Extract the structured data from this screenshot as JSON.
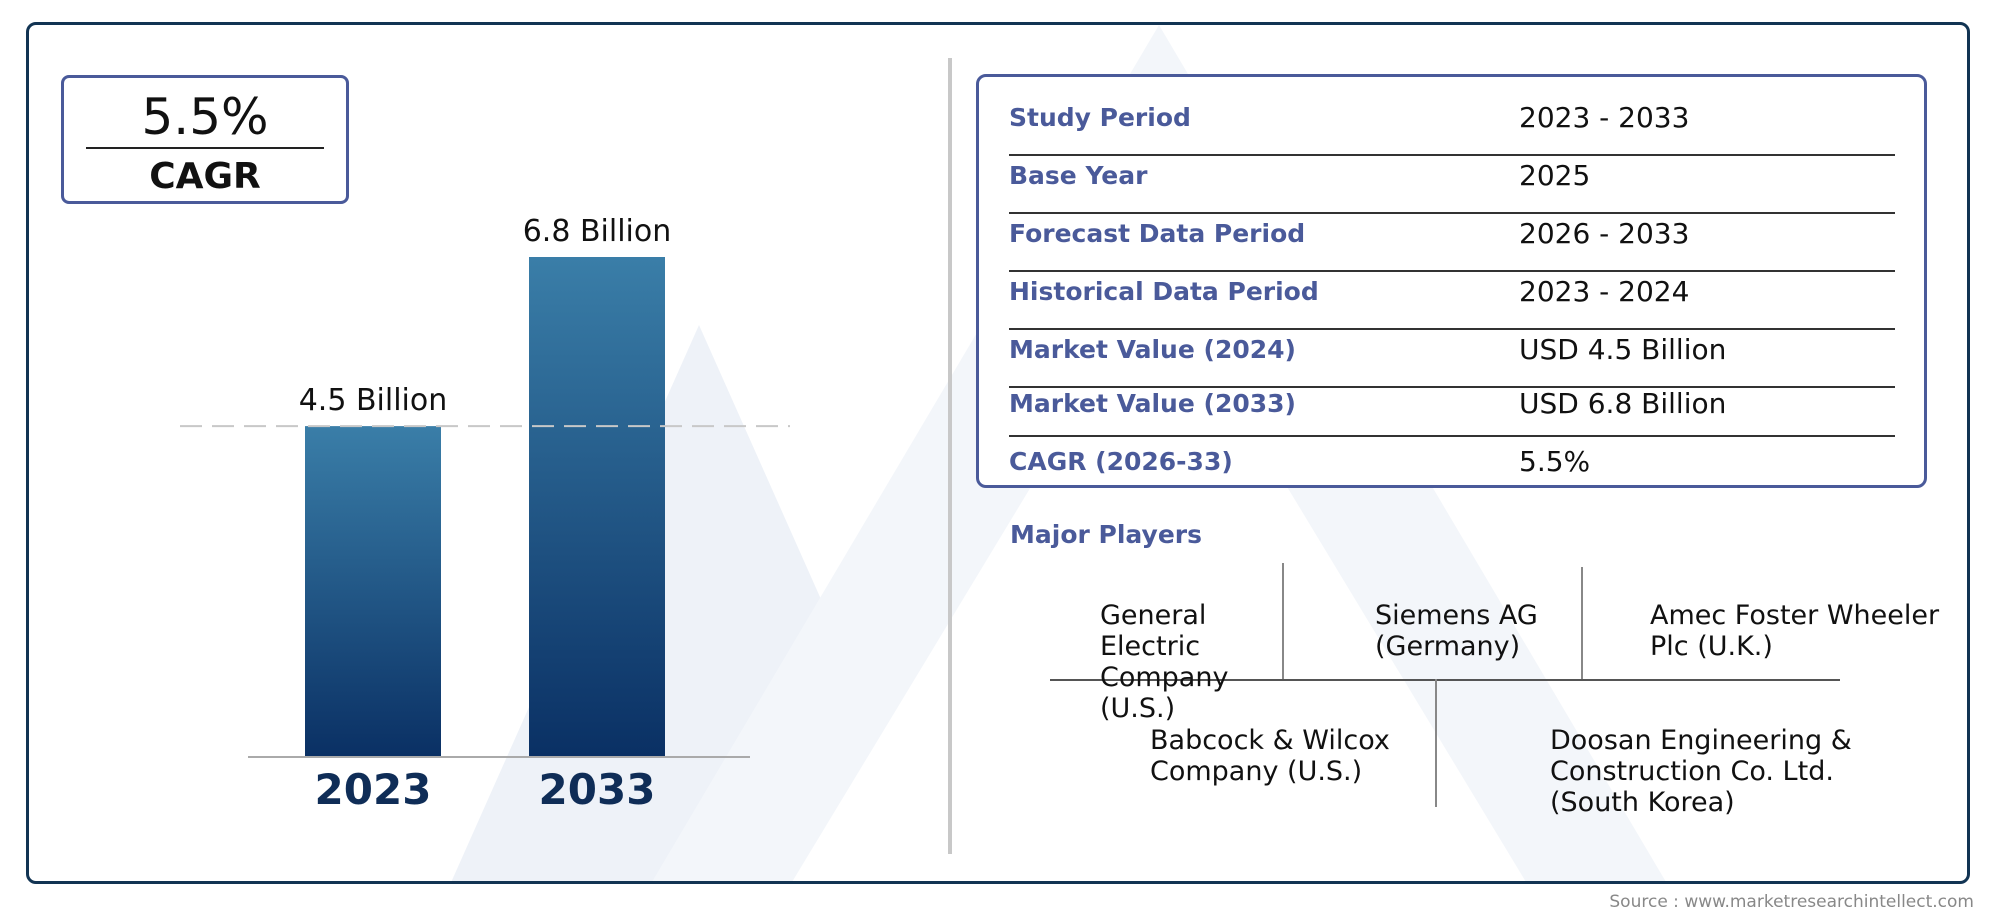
{
  "cagr_badge": {
    "value": "5.5%",
    "label": "CAGR"
  },
  "chart_data": {
    "type": "bar",
    "categories": [
      "2023",
      "2033"
    ],
    "values": [
      4.5,
      6.8
    ],
    "data_labels": [
      "4.5 Billion",
      "6.8 Billion"
    ],
    "title": "",
    "xlabel": "",
    "ylabel": "",
    "ylim": [
      0,
      6.8
    ],
    "reference_line": 4.5,
    "bar_color_top": "#3a7ea8",
    "bar_color_bottom": "#0a3064",
    "grid": false
  },
  "info_table": {
    "rows": [
      {
        "label": "Study Period",
        "value": "2023 - 2033"
      },
      {
        "label": "Base Year",
        "value": "2025"
      },
      {
        "label": "Forecast Data Period",
        "value": "2026 - 2033"
      },
      {
        "label": "Historical Data Period",
        "value": "2023 - 2024"
      },
      {
        "label": "Market Value (2024)",
        "value": "USD 4.5 Billion"
      },
      {
        "label": "Market Value (2033)",
        "value": "USD 6.8 Billion"
      },
      {
        "label": "CAGR (2026-33)",
        "value": "5.5%"
      }
    ]
  },
  "players": {
    "title": "Major Players",
    "list": [
      "General Electric Company (U.S.)",
      "Siemens AG (Germany)",
      "Amec Foster Wheeler Plc (U.K.)",
      "Babcock & Wilcox Company (U.S.)",
      "Doosan Engineering & Construction Co. Ltd. (South Korea)"
    ]
  },
  "source": "Source : www.marketresearchintellect.com",
  "colors": {
    "frame": "#123453",
    "accent": "#4a5a9a",
    "year_label": "#0f2d57"
  }
}
